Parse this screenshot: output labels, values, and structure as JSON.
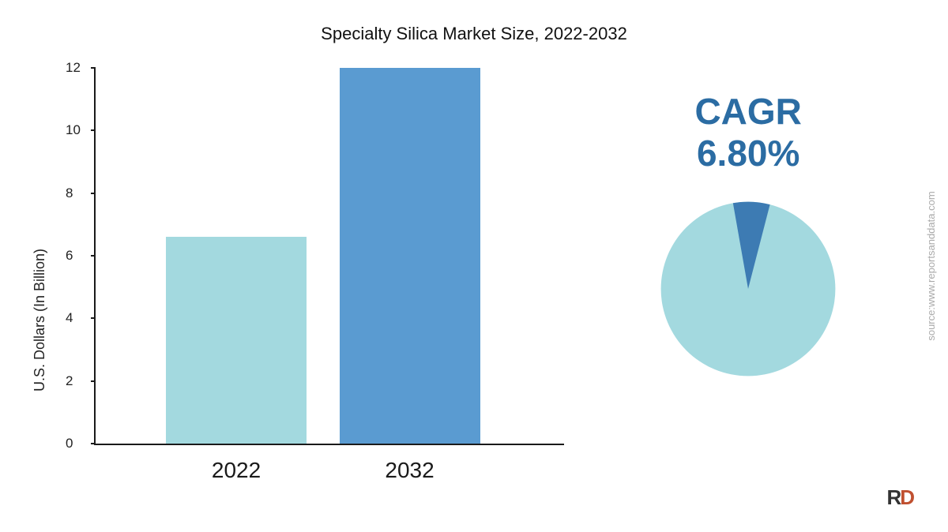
{
  "title": "Specialty Silica Market Size, 2022-2032",
  "ylabel": "U.S. Dollars (In Billion)",
  "chart": {
    "type": "bar",
    "ylim": [
      0,
      12
    ],
    "ytick_step": 2,
    "yticks": [
      0,
      2,
      4,
      6,
      8,
      10,
      12
    ],
    "categories": [
      "2022",
      "2032"
    ],
    "values": [
      6.6,
      12.0
    ],
    "bar_colors": [
      "#a3d9df",
      "#5a9bd1"
    ],
    "bar_width_pct": 30,
    "bar_positions_pct": [
      15,
      52
    ],
    "axis_color": "#1a1a1a",
    "background_color": "#ffffff",
    "xlabel_fontsize": 28,
    "ytick_fontsize": 17,
    "ylabel_fontsize": 18,
    "title_fontsize": 22
  },
  "cagr": {
    "label": "CAGR",
    "value": "6.80%",
    "color": "#2b6ca3",
    "fontsize": 46
  },
  "pie": {
    "type": "pie",
    "slice_pct": 6.8,
    "slice_color": "#3d7bb3",
    "rest_color": "#a3d9df",
    "start_angle_deg": -10
  },
  "source": "source:www.reportsanddata.com",
  "logo": {
    "r": "R",
    "d": "D"
  }
}
